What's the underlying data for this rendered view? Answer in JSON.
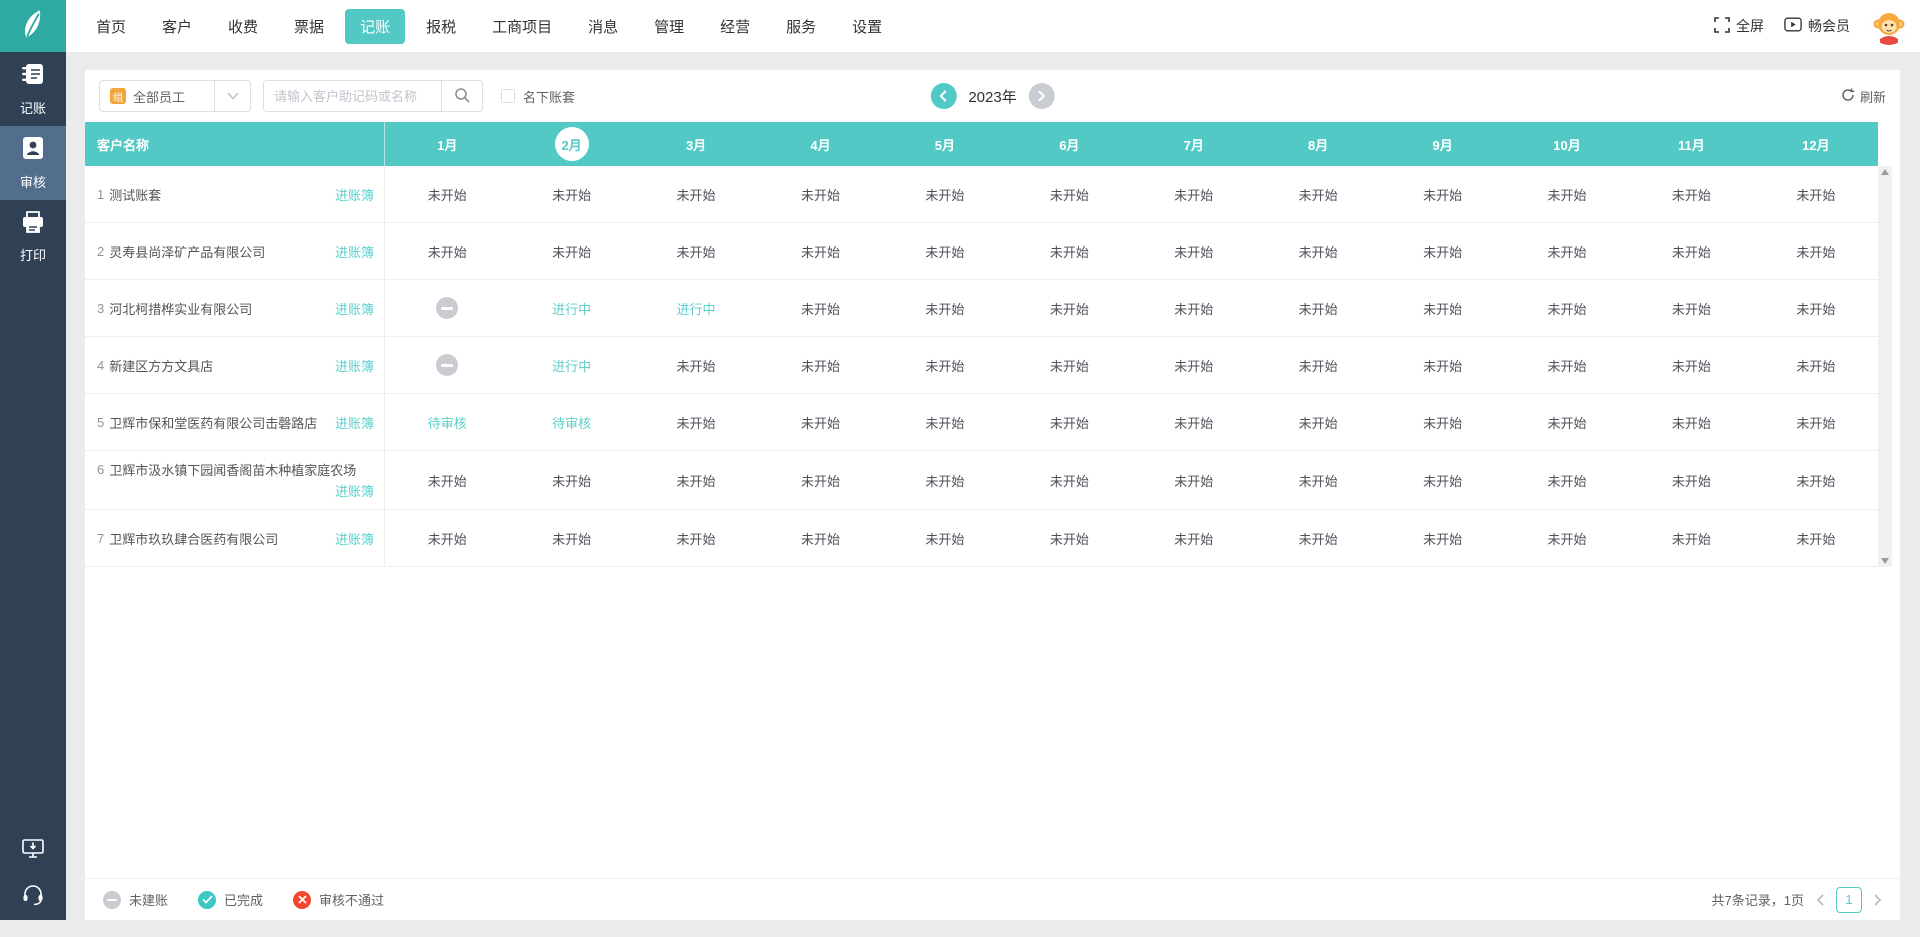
{
  "topbar": {
    "nav": [
      {
        "label": "首页",
        "active": false
      },
      {
        "label": "客户",
        "active": false
      },
      {
        "label": "收费",
        "active": false
      },
      {
        "label": "票据",
        "active": false
      },
      {
        "label": "记账",
        "active": true
      },
      {
        "label": "报税",
        "active": false
      },
      {
        "label": "工商项目",
        "active": false
      },
      {
        "label": "消息",
        "active": false
      },
      {
        "label": "管理",
        "active": false
      },
      {
        "label": "经营",
        "active": false
      },
      {
        "label": "服务",
        "active": false
      },
      {
        "label": "设置",
        "active": false
      }
    ],
    "fullscreen_label": "全屏",
    "member_label": "畅会员"
  },
  "sidebar": {
    "items": [
      {
        "label": "记账",
        "icon": "ledger-icon",
        "active": false
      },
      {
        "label": "审核",
        "icon": "audit-icon",
        "active": true
      },
      {
        "label": "打印",
        "icon": "printer-icon",
        "active": false
      }
    ]
  },
  "filters": {
    "employee_value": "全部员工",
    "employee_badge": "组",
    "search_placeholder": "请输入客户助记码或名称",
    "checkbox_label": "名下账套",
    "year": "2023年",
    "refresh_label": "刷新"
  },
  "table": {
    "name_header": "客户名称",
    "months": [
      "1月",
      "2月",
      "3月",
      "4月",
      "5月",
      "6月",
      "7月",
      "8月",
      "9月",
      "10月",
      "11月",
      "12月"
    ],
    "current_month_index": 1,
    "enter_link_label": "进账簿",
    "active_status_labels": [
      "进行中",
      "待审核"
    ],
    "rows": [
      {
        "num": "1",
        "name": "测试账套",
        "statuses": [
          "未开始",
          "未开始",
          "未开始",
          "未开始",
          "未开始",
          "未开始",
          "未开始",
          "未开始",
          "未开始",
          "未开始",
          "未开始",
          "未开始"
        ]
      },
      {
        "num": "2",
        "name": "灵寿县尚泽矿产品有限公司",
        "statuses": [
          "未开始",
          "未开始",
          "未开始",
          "未开始",
          "未开始",
          "未开始",
          "未开始",
          "未开始",
          "未开始",
          "未开始",
          "未开始",
          "未开始"
        ]
      },
      {
        "num": "3",
        "name": "河北柯措桦实业有限公司",
        "statuses": [
          "icon:minus",
          "进行中",
          "进行中",
          "未开始",
          "未开始",
          "未开始",
          "未开始",
          "未开始",
          "未开始",
          "未开始",
          "未开始",
          "未开始"
        ]
      },
      {
        "num": "4",
        "name": "新建区方方文具店",
        "statuses": [
          "icon:minus",
          "进行中",
          "未开始",
          "未开始",
          "未开始",
          "未开始",
          "未开始",
          "未开始",
          "未开始",
          "未开始",
          "未开始",
          "未开始"
        ]
      },
      {
        "num": "5",
        "name": "卫辉市保和堂医药有限公司击磬路店",
        "statuses": [
          "待审核",
          "待审核",
          "未开始",
          "未开始",
          "未开始",
          "未开始",
          "未开始",
          "未开始",
          "未开始",
          "未开始",
          "未开始",
          "未开始"
        ]
      },
      {
        "num": "6",
        "name": "卫辉市汲水镇下园闻香阁苗木种植家庭农场",
        "statuses": [
          "未开始",
          "未开始",
          "未开始",
          "未开始",
          "未开始",
          "未开始",
          "未开始",
          "未开始",
          "未开始",
          "未开始",
          "未开始",
          "未开始"
        ]
      },
      {
        "num": "7",
        "name": "卫辉市玖玖肆合医药有限公司",
        "statuses": [
          "未开始",
          "未开始",
          "未开始",
          "未开始",
          "未开始",
          "未开始",
          "未开始",
          "未开始",
          "未开始",
          "未开始",
          "未开始",
          "未开始"
        ]
      }
    ]
  },
  "legend": [
    {
      "icon": "minus-circle-icon",
      "label": "未建账"
    },
    {
      "icon": "check-circle-icon",
      "label": "已完成"
    },
    {
      "icon": "cross-circle-icon",
      "label": "审核不通过"
    }
  ],
  "pagination": {
    "summary": "共7条记录，1页",
    "page": "1"
  },
  "colors": {
    "accent": "#52c9c5",
    "logo_teal": "#2faaa3",
    "link_teal": "#5ccfcb",
    "sidebar_bg": "#304156",
    "sidebar_active": "#536e8d",
    "not_created_gray": "#c9ccd1",
    "done_teal": "#3dc8c3",
    "rejected_red": "#f4472e",
    "badge_orange": "#f0a63d"
  }
}
